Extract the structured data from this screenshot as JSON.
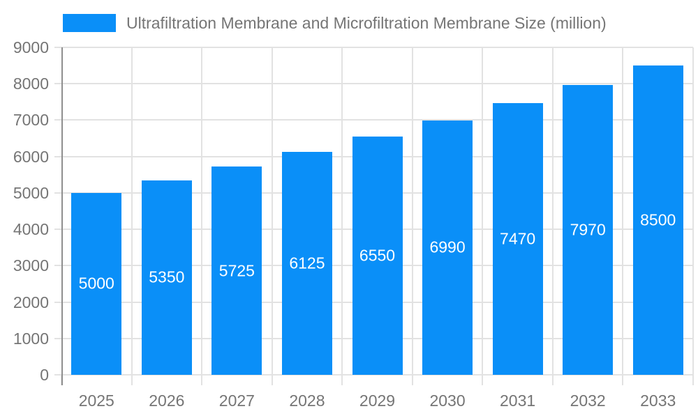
{
  "legend": {
    "label": "Ultrafiltration Membrane and Microfiltration Membrane Size (million)"
  },
  "colors": {
    "bar": "#0a8ff8",
    "bar_label": "#ffffff",
    "axis_text": "#757575",
    "gridline": "#e2e2e2",
    "axis_line": "#8f8f8f",
    "background": "#ffffff"
  },
  "chart_data": {
    "type": "bar",
    "series_name": "Ultrafiltration Membrane and Microfiltration Membrane Size (million)",
    "categories": [
      "2025",
      "2026",
      "2027",
      "2028",
      "2029",
      "2030",
      "2031",
      "2032",
      "2033"
    ],
    "values": [
      5000,
      5350,
      5725,
      6125,
      6550,
      6990,
      7470,
      7970,
      8500
    ],
    "title": "",
    "xlabel": "",
    "ylabel": "",
    "ylim": [
      0,
      9000
    ],
    "ytick_step": 1000,
    "grid": true,
    "legend_position": "top-left",
    "bar_labels_visible": true,
    "bar_label_position": "center-inside"
  }
}
